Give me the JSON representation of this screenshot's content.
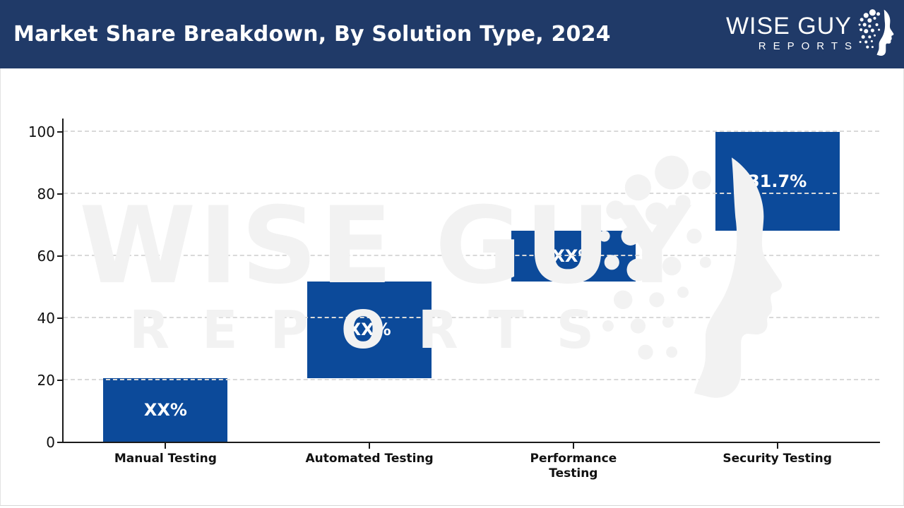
{
  "header": {
    "title": "Market Share Breakdown, By Solution Type, 2024",
    "logo": {
      "line1": "WISE GUY",
      "line2": "REPORTS"
    }
  },
  "watermark": {
    "line1": "WISE GUY",
    "line2": "REPORTS"
  },
  "colors": {
    "header_bg": "#203a68",
    "bar": "#0c4a9a",
    "bar_label": "#ffffff",
    "axis": "#1a1a1a",
    "gridline": "#d9d9d9",
    "watermark": "#f2f2f2"
  },
  "chart_data": {
    "type": "bar",
    "subtype": "floating-waterfall",
    "title": "Market Share Breakdown, By Solution Type, 2024",
    "categories": [
      "Manual Testing",
      "Automated Testing",
      "Performance\nTesting",
      "Security Testing"
    ],
    "segments": [
      {
        "category": "Manual Testing",
        "start": 0,
        "end": 20.7,
        "label": "XX%"
      },
      {
        "category": "Automated Testing",
        "start": 20.7,
        "end": 51.9,
        "label": "XX%"
      },
      {
        "category": "Performance Testing",
        "start": 51.9,
        "end": 68.3,
        "label": "XX%"
      },
      {
        "category": "Security Testing",
        "start": 68.3,
        "end": 100,
        "label": "31.7%"
      }
    ],
    "yticks": [
      0,
      20,
      40,
      60,
      80,
      100
    ],
    "ylim": [
      0,
      103.9
    ],
    "xlabel": "",
    "ylabel": "",
    "grid": "horizontal-dashed",
    "legend": null
  }
}
